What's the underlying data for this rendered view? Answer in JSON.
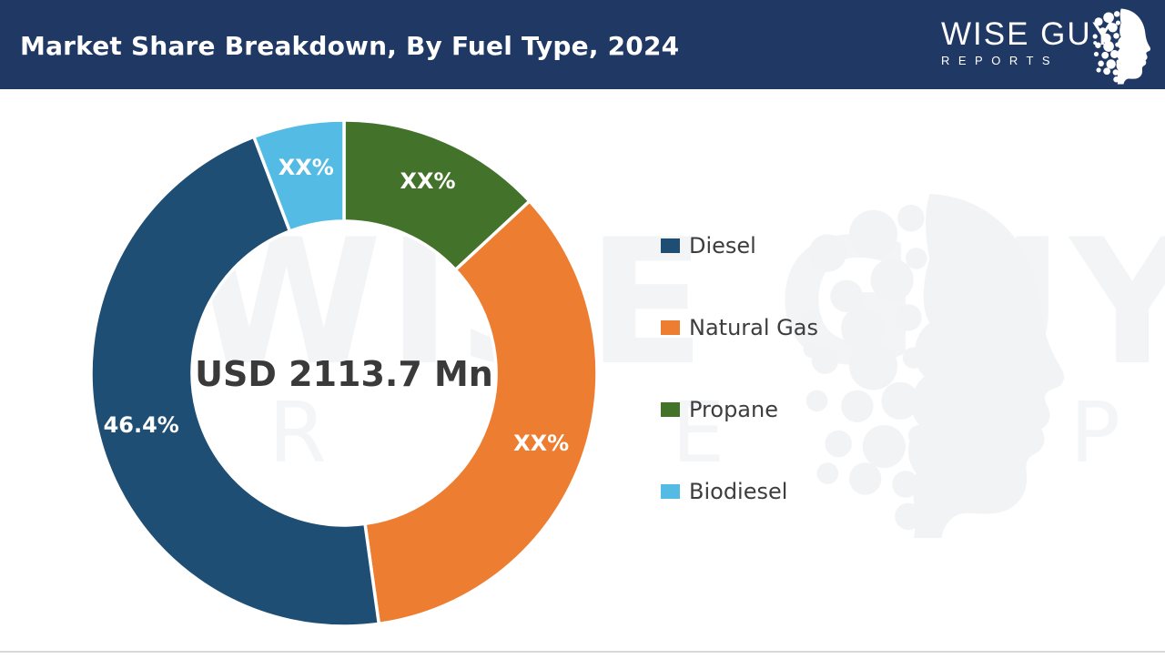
{
  "header": {
    "title": "Market Share Breakdown, By Fuel Type, 2024",
    "logo": {
      "line1": "WISE GUY",
      "line2": "REPORTS"
    }
  },
  "chart_data": {
    "type": "pie",
    "subtype": "donut",
    "title": "Market Share Breakdown, By Fuel Type, 2024",
    "center_label": "USD 2113.7 Mn",
    "unit": "percent",
    "start_angle_deg": 0,
    "direction": "clockwise",
    "slices": [
      {
        "name": "Propane",
        "value": 13.1,
        "display_label": "XX%",
        "color": "#43722a"
      },
      {
        "name": "Natural Gas",
        "value": 34.7,
        "display_label": "XX%",
        "color": "#ed7d31"
      },
      {
        "name": "Diesel",
        "value": 46.4,
        "display_label": "46.4%",
        "color": "#1f4e74"
      },
      {
        "name": "Biodiesel",
        "value": 5.8,
        "display_label": "XX%",
        "color": "#54bbe4"
      }
    ],
    "legend_position": "right"
  },
  "legend": {
    "items": [
      {
        "label": "Diesel",
        "color": "#1f4e74"
      },
      {
        "label": "Natural Gas",
        "color": "#ed7d31"
      },
      {
        "label": "Propane",
        "color": "#43722a"
      },
      {
        "label": "Biodiesel",
        "color": "#54bbe4"
      }
    ]
  },
  "watermark": {
    "line1": "WISE GUY",
    "line2": "R E P O R T S"
  },
  "colors": {
    "header_bg": "#1f3864",
    "center_text": "#3a3a3a",
    "legend_text": "#3d3d3d",
    "slice_label_text": "#ffffff",
    "watermark": "#f2f3f5"
  }
}
